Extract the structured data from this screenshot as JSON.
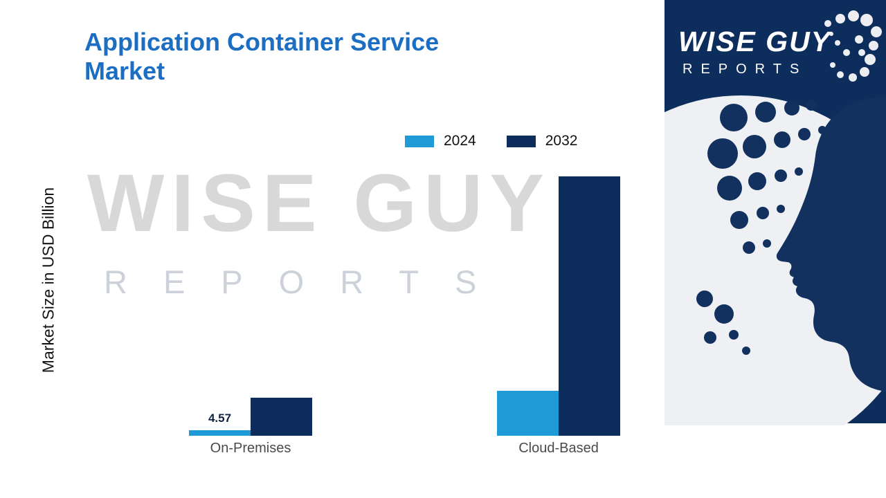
{
  "page": {
    "title": "Application Container Service Market"
  },
  "brand": {
    "logo_line1": "WISE GUY",
    "logo_line2": "REPORTS"
  },
  "watermark": {
    "line1": "WISE GUY",
    "line2": "REPORTS"
  },
  "colors": {
    "title_blue": "#1b6ec2",
    "series_2024": "#1e9bd7",
    "series_2032": "#0d2d5c",
    "brand_background": "#0d2d5c",
    "watermark_gray": "#d8d8d8"
  },
  "chart_data": {
    "type": "bar",
    "title": "Application Container Service Market",
    "xlabel": "",
    "ylabel": "Market Size in USD Billion",
    "categories": [
      "On-Premises",
      "Cloud-Based"
    ],
    "series": [
      {
        "name": "2024",
        "color": "#1e9bd7",
        "values": [
          4.57,
          38
        ]
      },
      {
        "name": "2032",
        "color": "#0d2d5c",
        "values": [
          32,
          219
        ]
      }
    ],
    "data_labels": [
      {
        "series": "2024",
        "category": "On-Premises",
        "text": "4.57"
      }
    ],
    "ylim": [
      0,
      220
    ],
    "grid": false,
    "legend_position": "top-right"
  }
}
